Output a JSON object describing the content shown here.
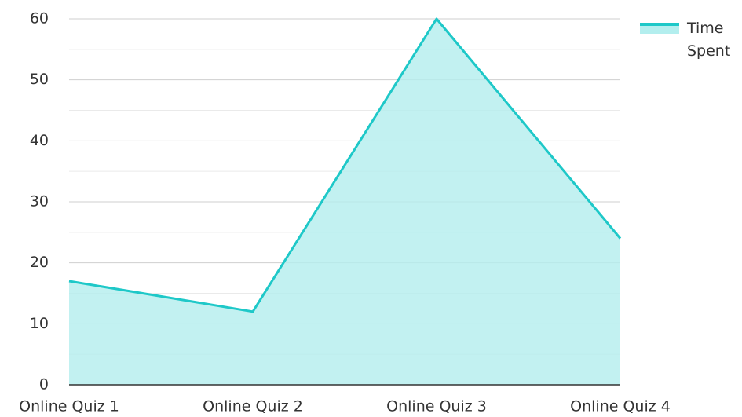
{
  "chart_data": {
    "type": "area",
    "categories": [
      "Online Quiz 1",
      "Online Quiz 2",
      "Online Quiz 3",
      "Online Quiz 4"
    ],
    "series": [
      {
        "name": "Time Spent",
        "color": "#1ec8c8",
        "fill": "#b3eeee",
        "values": [
          17,
          12,
          60,
          24
        ]
      }
    ],
    "ylim": [
      0,
      60
    ],
    "yticks": [
      0,
      10,
      20,
      30,
      40,
      50,
      60
    ],
    "grid": true,
    "legend": "top-right"
  }
}
